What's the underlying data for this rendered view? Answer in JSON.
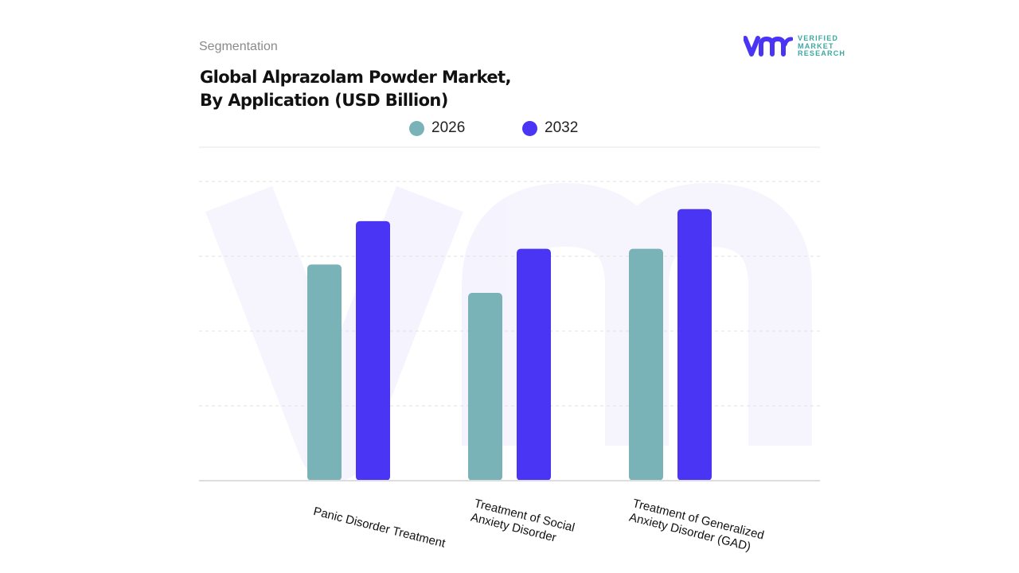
{
  "header": {
    "segment_label": "Segmentation",
    "title_line1": "Global Alprazolam Powder Market,",
    "title_line2": "By Application (USD Billion)"
  },
  "logo": {
    "line1": "VERIFIED",
    "line2": "MARKET",
    "line3": "RESEARCH",
    "mark": "vmr"
  },
  "chart_data": {
    "type": "bar",
    "title": "Global Alprazolam Powder Market, By Application (USD Billion)",
    "categories": [
      "Panic Disorder Treatment",
      "Treatment of Social Anxiety Disorder",
      "Treatment of Generalized Anxiety Disorder (GAD)"
    ],
    "series": [
      {
        "name": "2026",
        "color": "#7ab3b7",
        "values": [
          2.89,
          2.51,
          3.1
        ]
      },
      {
        "name": "2032",
        "color": "#4a35f5",
        "values": [
          3.47,
          3.1,
          3.63
        ]
      }
    ],
    "ylim": [
      0,
      4
    ],
    "grid": true,
    "legend_position": "top",
    "y_tick_labels_shown": false
  },
  "xlabels": {
    "c0": "Panic Disorder Treatment",
    "c1": "Treatment of Social\nAnxiety Disorder",
    "c2": "Treatment of Generalized\nAnxiety Disorder (GAD)"
  }
}
